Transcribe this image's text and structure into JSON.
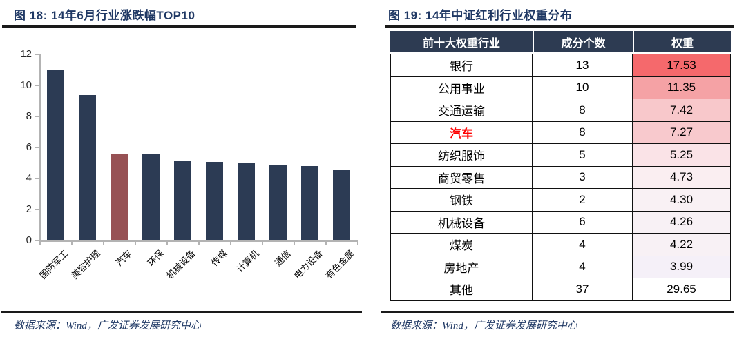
{
  "colors": {
    "title_navy": "#1f3864",
    "bar_navy": "#2c3b54",
    "bar_highlight_red": "#975154",
    "table_header_bg": "#2d3b52",
    "axis_grey": "#b3b3b3",
    "rule_black": "#1a1a1a",
    "highlight_text_red": "#fe0000"
  },
  "left_panel": {
    "title": "图 18:  14年6月行业涨跌幅TOP10",
    "source": "数据来源：Wind，广发证券发展研究中心"
  },
  "right_panel": {
    "title": "图 19:  14年中证红利行业权重分布",
    "source": "数据来源：Wind，广发证券发展研究中心"
  },
  "chart_data": [
    {
      "type": "bar",
      "title": "14年6月行业涨跌幅TOP10",
      "categories": [
        "国防军工",
        "美容护理",
        "汽车",
        "环保",
        "机械设备",
        "传媒",
        "计算机",
        "通信",
        "电力设备",
        "有色金属"
      ],
      "values": [
        11.0,
        9.4,
        5.6,
        5.55,
        5.15,
        5.05,
        5.0,
        4.9,
        4.8,
        4.6
      ],
      "highlight_index": 2,
      "bar_color": "#2c3b54",
      "highlight_color": "#975154",
      "xlabel": "",
      "ylabel": "",
      "ylim": [
        0,
        12
      ],
      "yticks": [
        0,
        2,
        4,
        6,
        8,
        10,
        12
      ],
      "grid": false,
      "legend": "none",
      "xlabel_rotation_deg": -45
    },
    {
      "type": "table",
      "title": "14年中证红利行业权重分布",
      "columns": [
        "前十大权重行业",
        "成分个数",
        "权重"
      ],
      "rows": [
        {
          "industry": "银行",
          "count": "13",
          "weight": "17.53",
          "weight_bg": "#f5696c",
          "industry_style": "normal"
        },
        {
          "industry": "公用事业",
          "count": "10",
          "weight": "11.35",
          "weight_bg": "#f5a2a5",
          "industry_style": "normal"
        },
        {
          "industry": "交通运输",
          "count": "8",
          "weight": "7.42",
          "weight_bg": "#f8c8cb",
          "industry_style": "normal"
        },
        {
          "industry": "汽车",
          "count": "8",
          "weight": "7.27",
          "weight_bg": "#f8c9cd",
          "industry_style": "red-bold"
        },
        {
          "industry": "纺织服饰",
          "count": "5",
          "weight": "5.25",
          "weight_bg": "#fae3e7",
          "industry_style": "normal"
        },
        {
          "industry": "商贸零售",
          "count": "3",
          "weight": "4.73",
          "weight_bg": "#faeef1",
          "industry_style": "normal"
        },
        {
          "industry": "钢铁",
          "count": "2",
          "weight": "4.30",
          "weight_bg": "#f9f1f4",
          "industry_style": "normal"
        },
        {
          "industry": "机械设备",
          "count": "6",
          "weight": "4.26",
          "weight_bg": "#f8f1f5",
          "industry_style": "normal"
        },
        {
          "industry": "煤炭",
          "count": "4",
          "weight": "4.22",
          "weight_bg": "#f8f1f5",
          "industry_style": "normal"
        },
        {
          "industry": "房地产",
          "count": "4",
          "weight": "3.99",
          "weight_bg": "#f5f0f8",
          "industry_style": "normal"
        },
        {
          "industry": "其他",
          "count": "37",
          "weight": "29.65",
          "weight_bg": "#ffffff",
          "industry_style": "normal"
        }
      ]
    }
  ]
}
